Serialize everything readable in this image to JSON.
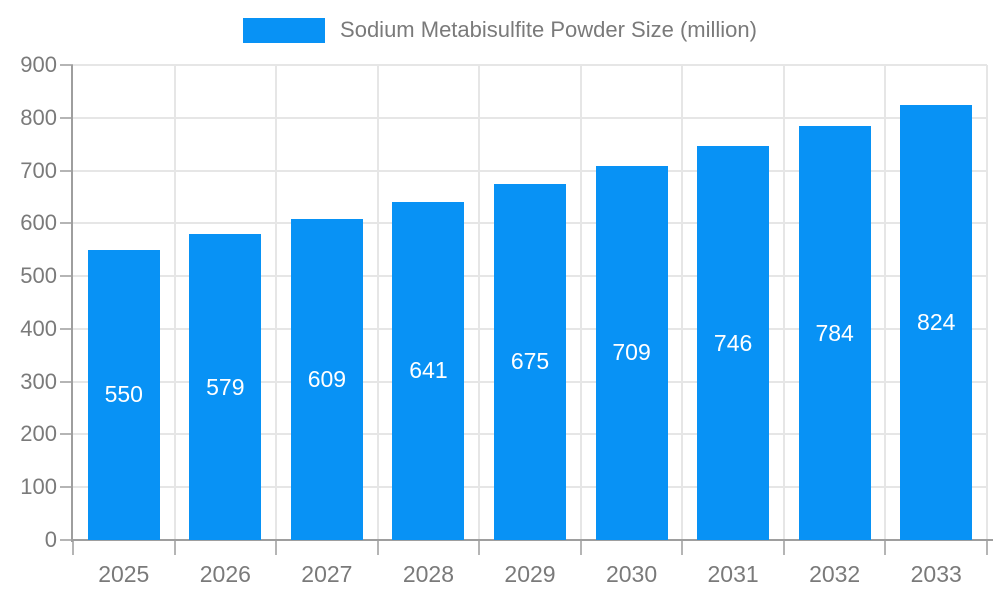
{
  "legend": {
    "label": "Sodium Metabisulfite Powder Size (million)"
  },
  "colors": {
    "bar": "#0892f5",
    "grid": "#e6e6e6",
    "axis": "#9e9e9e",
    "tick": "#b5b5b5",
    "x_tick": "#c9c9c9",
    "text": "#7a7a7a",
    "value_text": "#ffffff",
    "background": "#ffffff"
  },
  "chart_data": {
    "type": "bar",
    "title": "Sodium Metabisulfite Powder Size (million)",
    "categories": [
      "2025",
      "2026",
      "2027",
      "2028",
      "2029",
      "2030",
      "2031",
      "2032",
      "2033"
    ],
    "values": [
      550,
      579,
      609,
      641,
      675,
      709,
      746,
      784,
      824
    ],
    "xlabel": "",
    "ylabel": "",
    "ylim": [
      0,
      900
    ],
    "ytick_step": 100,
    "grid": true,
    "legend_position": "top-center",
    "bar_label_position": "inside-middle"
  }
}
